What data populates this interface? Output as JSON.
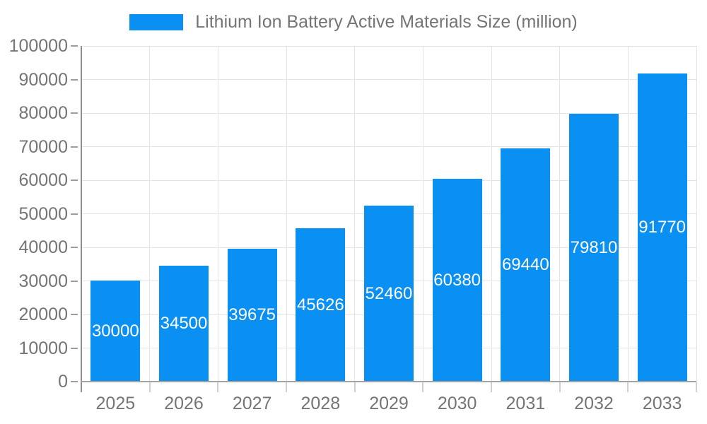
{
  "chart_data": {
    "type": "bar",
    "title": "Lithium Ion Battery Active Materials Size (million)",
    "categories": [
      "2025",
      "2026",
      "2027",
      "2028",
      "2029",
      "2030",
      "2031",
      "2032",
      "2033"
    ],
    "values": [
      30000,
      34500,
      39675,
      45626,
      52460,
      60380,
      69440,
      79810,
      91770
    ],
    "xlabel": "",
    "ylabel": "",
    "ylim": [
      0,
      100000
    ],
    "ytick_step": 10000,
    "ytick_labels": [
      "0",
      "10000",
      "20000",
      "30000",
      "40000",
      "50000",
      "60000",
      "70000",
      "80000",
      "90000",
      "100000"
    ],
    "grid": true,
    "legend_position": "top-center",
    "data_labels_inside_bars": true,
    "colors": {
      "bar": "#0a8ff2",
      "bar_label_text": "#ffffff",
      "axis_text": "#757575",
      "legend_text": "#757575",
      "gridline": "#e4e4e4",
      "axis_line": "#9e9e9e",
      "background": "#ffffff"
    }
  }
}
